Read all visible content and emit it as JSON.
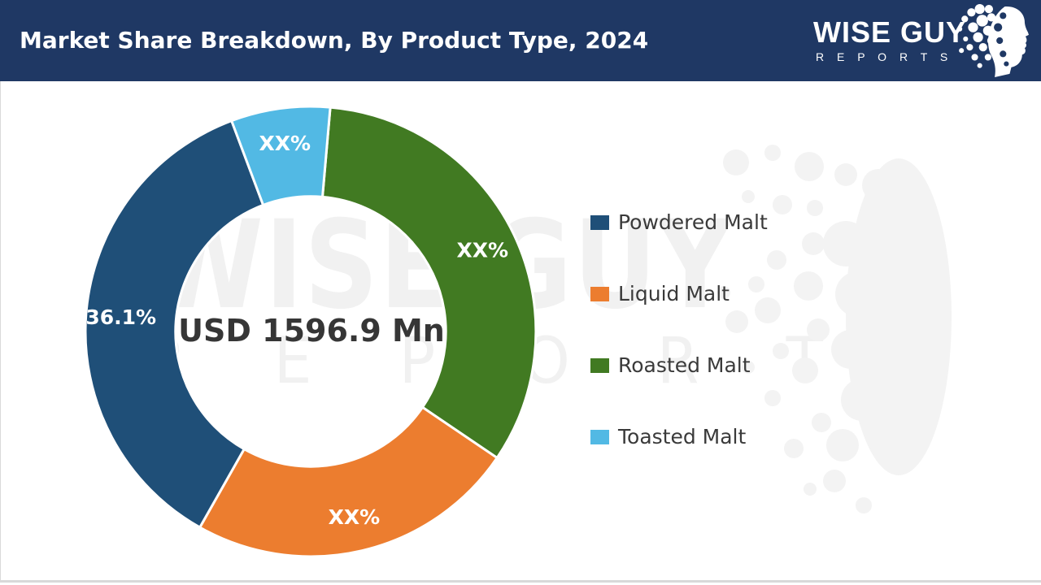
{
  "header": {
    "title": "Market Share Breakdown, By Product Type, 2024",
    "background_color": "#1F3864",
    "logo_line1": "WISE GUY",
    "logo_line2": "R E P O R T S"
  },
  "watermark": {
    "line1": "WISE GUY",
    "line2": "R E P O R T S"
  },
  "chart_data": {
    "type": "pie",
    "subtype": "donut",
    "title": "Market Share Breakdown, By Product Type, 2024",
    "center_label": "USD 1596.9 Mn",
    "values_are": "percent of market share",
    "start_angle_deg_clockwise_from_top": 5,
    "direction": "clockwise",
    "inner_radius_ratio": 0.6,
    "legend_position": "right",
    "grid": false,
    "segments": [
      {
        "name": "Powdered Malt",
        "value_pct": 36.1,
        "slice_label": "36.1%",
        "color": "#1F4F78",
        "label_color": "#ffffff"
      },
      {
        "name": "Liquid Malt",
        "value_pct": 23.7,
        "slice_label": "XX%",
        "color": "#EC7D2F",
        "label_color": "#ffffff"
      },
      {
        "name": "Roasted Malt",
        "value_pct": 33.1,
        "slice_label": "XX%",
        "color": "#417A22",
        "label_color": "#ffffff"
      },
      {
        "name": "Toasted Malt",
        "value_pct": 7.1,
        "slice_label": "XX%",
        "color": "#52B9E4",
        "label_color": "#ffffff"
      }
    ],
    "draw_order_clockwise": [
      "Roasted Malt",
      "Liquid Malt",
      "Powdered Malt",
      "Toasted Malt"
    ]
  }
}
